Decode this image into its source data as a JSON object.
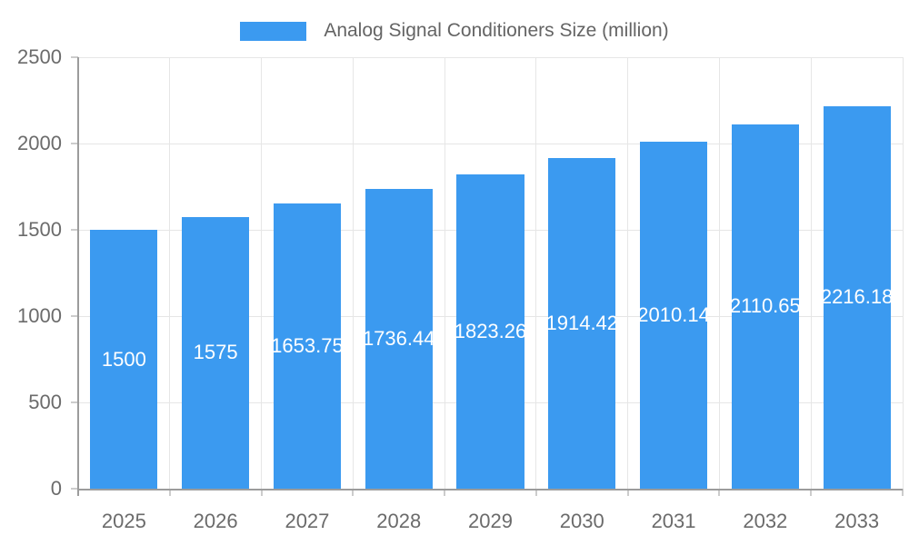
{
  "colors": {
    "bar": "#3b9af0",
    "grid": "#e6e6e6",
    "axis": "#9c9c9c",
    "tick": "#cccccc",
    "axis_text": "#6b6b6b",
    "legend_text": "#646464",
    "value_text": "#ffffff",
    "background": "#ffffff"
  },
  "legend": {
    "label": "Analog Signal Conditioners Size (million)"
  },
  "chart_data": {
    "type": "bar",
    "title": "Analog Signal Conditioners Size (million)",
    "xlabel": "",
    "ylabel": "",
    "categories": [
      "2025",
      "2026",
      "2027",
      "2028",
      "2029",
      "2030",
      "2031",
      "2032",
      "2033"
    ],
    "values": [
      1500,
      1575,
      1653.75,
      1736.44,
      1823.26,
      1914.42,
      2010.14,
      2110.65,
      2216.18
    ],
    "value_labels": [
      "1500",
      "1575",
      "1653.75",
      "1736.44",
      "1823.26",
      "1914.42",
      "2010.14",
      "2110.65",
      "2216.18"
    ],
    "ylim": [
      0,
      2500
    ],
    "yticks": [
      0,
      500,
      1000,
      1500,
      2000,
      2500
    ],
    "ytick_labels": [
      "0",
      "500",
      "1000",
      "1500",
      "2000",
      "2500"
    ],
    "grid": true,
    "legend_position": "top-center",
    "bar_color": "#3b9af0"
  }
}
